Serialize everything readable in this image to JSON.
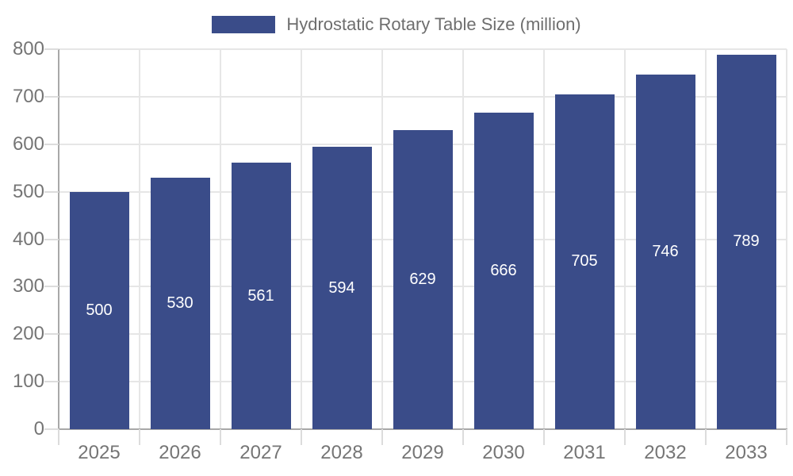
{
  "legend": {
    "label": "Hydrostatic Rotary Table Size (million)"
  },
  "colors": {
    "bar": "#3a4c89",
    "axis_line": "#a8a8a8",
    "gridline": "#e6e6e6",
    "tick_line": "#dcdcdc",
    "tick_text": "#757575",
    "legend_text": "#6e6e6e",
    "value_label_text": "#ffffff"
  },
  "chart_data": {
    "type": "bar",
    "title": "Hydrostatic Rotary Table Size (million)",
    "categories": [
      "2025",
      "2026",
      "2027",
      "2028",
      "2029",
      "2030",
      "2031",
      "2032",
      "2033"
    ],
    "values": [
      500,
      530,
      561,
      594,
      629,
      666,
      705,
      746,
      789
    ],
    "value_labels": [
      "500",
      "530",
      "561",
      "594",
      "629",
      "666",
      "705",
      "746",
      "789"
    ],
    "ytick_labels": [
      "0",
      "100",
      "200",
      "300",
      "400",
      "500",
      "600",
      "700",
      "800"
    ],
    "xlabel": "",
    "ylabel": "",
    "ylim": [
      0,
      800
    ],
    "ytick_step": 100,
    "grid": true,
    "legend_position": "top",
    "bar_label_position": "center"
  }
}
